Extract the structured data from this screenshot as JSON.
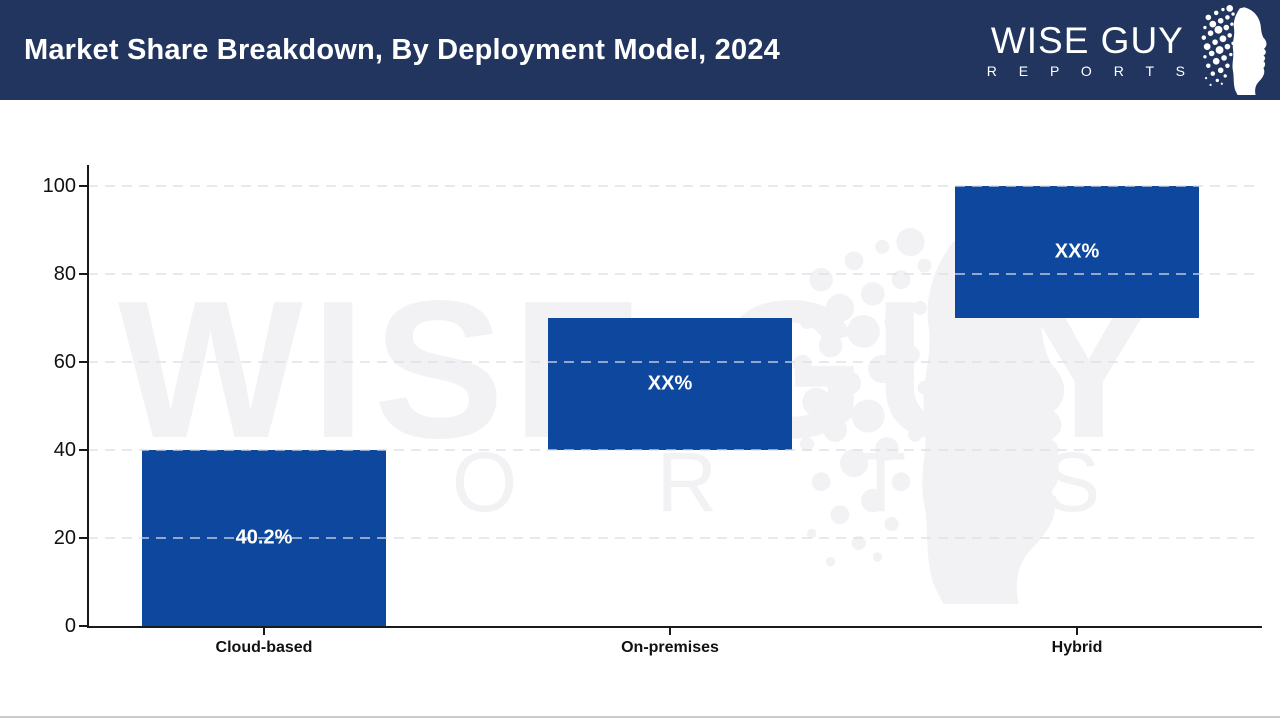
{
  "header": {
    "title": "Market Share Breakdown, By Deployment Model, 2024",
    "logo": {
      "name": "WISE GUY",
      "tagline": "R E P O R T S"
    }
  },
  "watermark": {
    "line1": "WISE GUY",
    "line2": "P O R T S"
  },
  "chart_data": {
    "type": "bar",
    "variant": "floating-segment waterfall of market share",
    "title": "Market Share Breakdown, By Deployment Model, 2024",
    "categories": [
      "Cloud-based",
      "On-premises",
      "Hybrid"
    ],
    "segments": [
      {
        "category": "Cloud-based",
        "start": 0,
        "end": 40,
        "label": "40.2%"
      },
      {
        "category": "On-premises",
        "start": 40,
        "end": 70,
        "label": "XX%"
      },
      {
        "category": "Hybrid",
        "start": 70,
        "end": 100,
        "label": "XX%"
      }
    ],
    "y_ticks": [
      0,
      20,
      40,
      60,
      80,
      100
    ],
    "ylim": [
      0,
      100
    ],
    "xlabel": "",
    "ylabel": "",
    "legend": "none",
    "grid": "horizontal dashed lines drawn over bars",
    "bar_color": "#0D479E"
  },
  "colors": {
    "header_bg": "#21355F",
    "bar": "#0D479E",
    "watermark": "#F2F2F4",
    "gridline": "#DDE2E9",
    "axis": "#1A1A1A"
  }
}
